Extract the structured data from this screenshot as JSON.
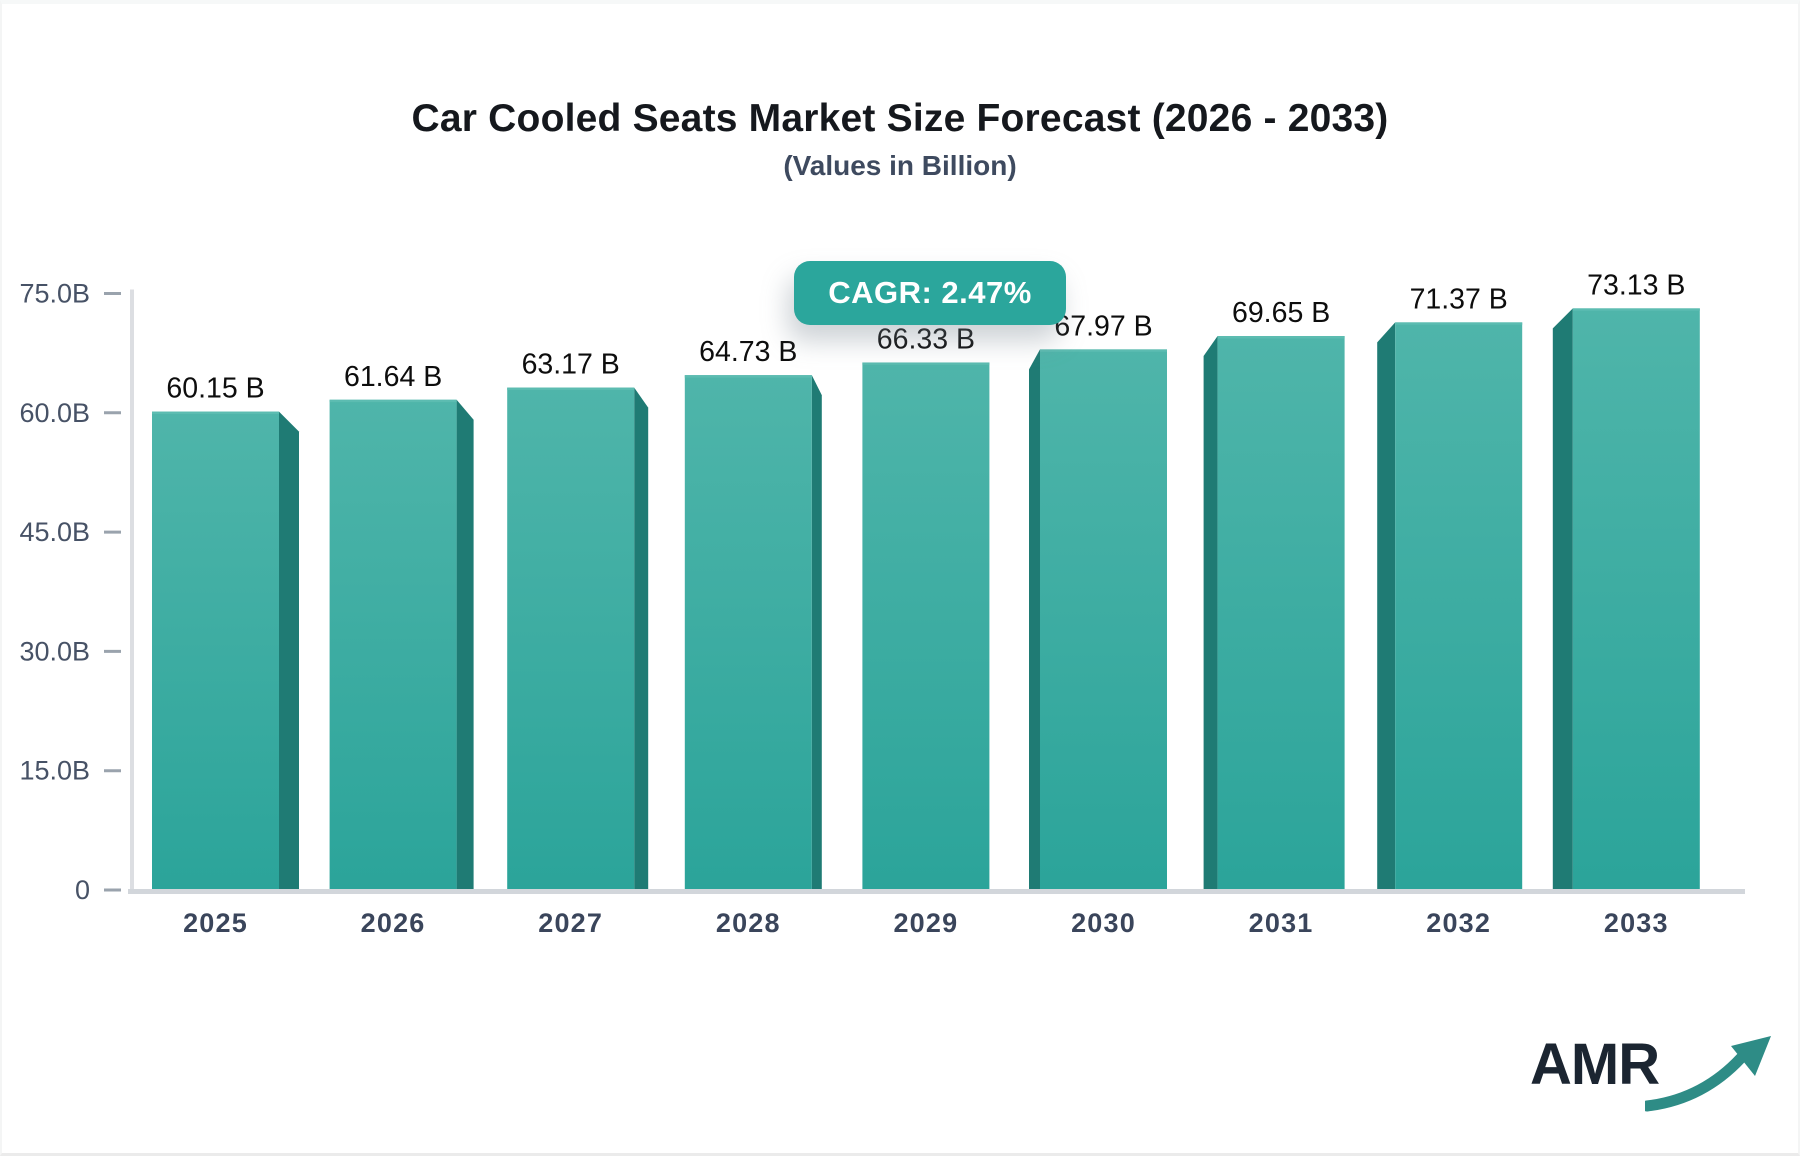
{
  "header": {
    "title": "Car Cooled Seats Market Size Forecast (2026 - 2033)",
    "subtitle": "(Values in Billion)"
  },
  "cagr_badge": {
    "label": "CAGR: 2.47%"
  },
  "logo": {
    "text": "AMR"
  },
  "chart_data": {
    "type": "bar",
    "title": "Car Cooled Seats Market Size Forecast (2026 - 2033)",
    "subtitle": "(Values in Billion)",
    "cagr": "2.47%",
    "unit": "Billion",
    "categories": [
      "2025",
      "2026",
      "2027",
      "2028",
      "2029",
      "2030",
      "2031",
      "2032",
      "2033"
    ],
    "values": [
      60.15,
      61.64,
      63.17,
      64.73,
      66.33,
      67.97,
      69.65,
      71.37,
      73.13
    ],
    "value_labels": [
      "60.15 B",
      "61.64 B",
      "63.17 B",
      "64.73 B",
      "66.33 B",
      "67.97 B",
      "69.65 B",
      "71.37 B",
      "73.13 B"
    ],
    "ylim": [
      0,
      75
    ],
    "y_ticks": [
      {
        "value": 0,
        "label": "0"
      },
      {
        "value": 15,
        "label": "15.0B"
      },
      {
        "value": 30,
        "label": "30.0B"
      },
      {
        "value": 45,
        "label": "45.0B"
      },
      {
        "value": 60,
        "label": "60.0B"
      },
      {
        "value": 75,
        "label": "75.0B"
      }
    ],
    "grid": false,
    "legend": null,
    "colors": {
      "bar_face_top": "#4fb5aa",
      "bar_face_bottom": "#2ba49a",
      "bar_top_edge": "#5cbcb1",
      "bar_side": "#1f7b74",
      "axis_line": "#d2d6db",
      "tick": "#9aa3ad",
      "y_label": "#475266",
      "x_label": "#3a455b",
      "value_label": "#0d0d0d",
      "badge_bg": "#2ba69c",
      "badge_text": "#ffffff",
      "logo_text": "#1b2531",
      "logo_arrow": "#2e8c86"
    }
  }
}
